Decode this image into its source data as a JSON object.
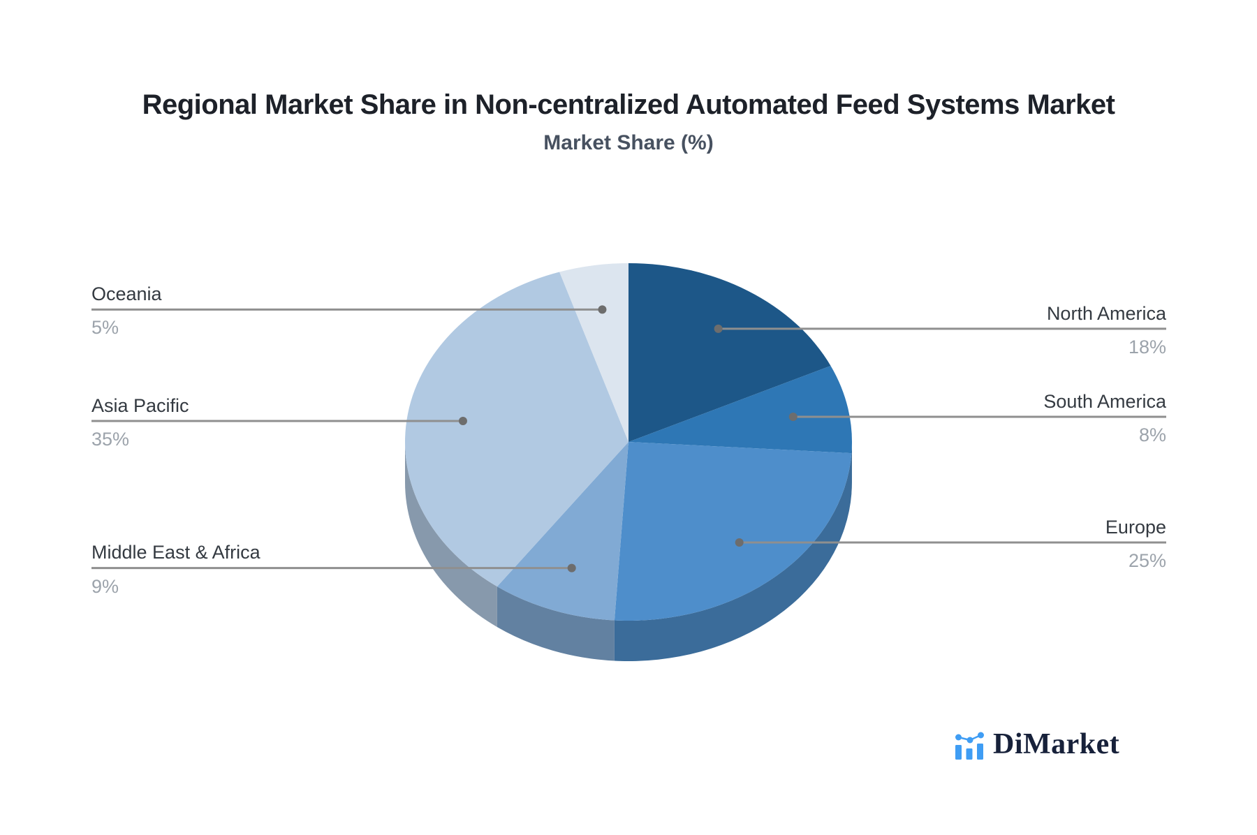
{
  "title": "Regional Market Share in Non-centralized Automated Feed Systems Market",
  "subtitle": "Market Share (%)",
  "chart_data": {
    "type": "pie",
    "style": "3d",
    "title": "Regional Market Share in Non-centralized Automated Feed Systems Market",
    "subtitle": "Market Share (%)",
    "unit": "%",
    "start_angle_deg": 0,
    "direction": "clockwise",
    "legend_position": "callout-labels",
    "slices": [
      {
        "label": "North America",
        "value": 18,
        "pct_label": "18%",
        "color": "#1d5788",
        "side": "right"
      },
      {
        "label": "South America",
        "value": 8,
        "pct_label": "8%",
        "color": "#2e77b5",
        "side": "right"
      },
      {
        "label": "Europe",
        "value": 25,
        "pct_label": "25%",
        "color": "#4e8ecb",
        "side": "right"
      },
      {
        "label": "Middle East & Africa",
        "value": 9,
        "pct_label": "9%",
        "color": "#81aad4",
        "side": "left"
      },
      {
        "label": "Asia Pacific",
        "value": 35,
        "pct_label": "35%",
        "color": "#b1c9e2",
        "side": "left"
      },
      {
        "label": "Oceania",
        "value": 5,
        "pct_label": "5%",
        "color": "#dce5ef",
        "side": "left"
      }
    ],
    "callout": {
      "line_color": "#8f8f8f",
      "dot_color": "#6d6d6d",
      "name_color": "#343a41",
      "pct_color": "#9ca3ab"
    }
  },
  "branding": {
    "logo_text": "DiMarket",
    "logo_icon": "bar-chart-trend-icon",
    "logo_icon_color": "#3f9df4",
    "logo_text_color": "#17213a"
  }
}
